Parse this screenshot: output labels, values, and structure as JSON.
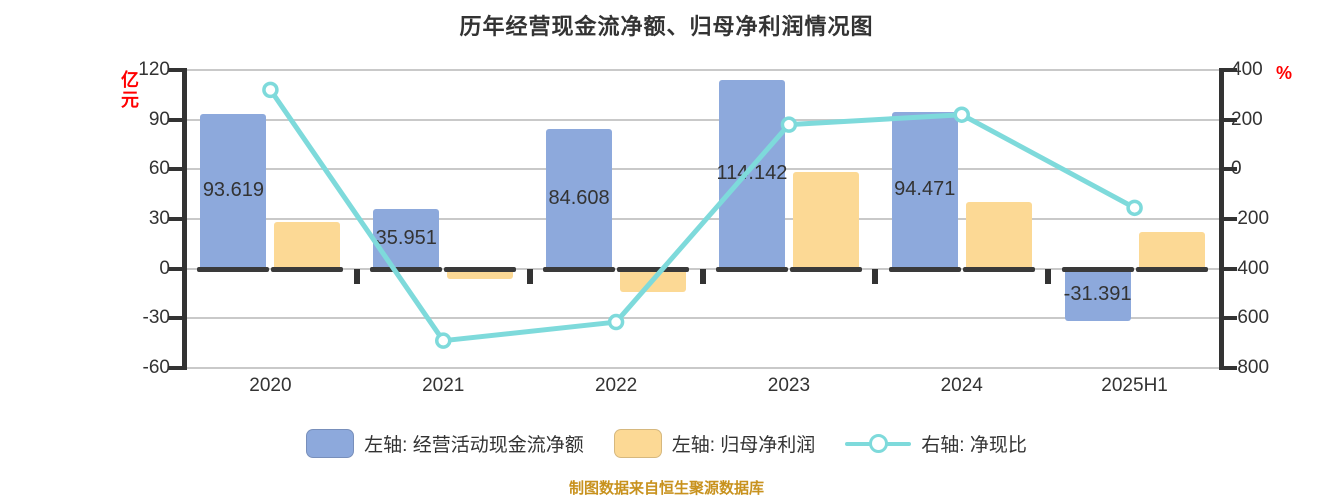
{
  "chart_data": {
    "type": "bar",
    "subtype": "dual-axis bar+line combo",
    "title": "历年经营现金流净额、归母净利润情况图",
    "categories": [
      "2020",
      "2021",
      "2022",
      "2023",
      "2024",
      "2025H1"
    ],
    "series": [
      {
        "key": "cashflow",
        "name": "左轴: 经营活动现金流净额",
        "type": "bar",
        "axis": "left",
        "color": "#8da9dc",
        "values": [
          93.619,
          35.951,
          84.608,
          114.142,
          94.471,
          -31.391
        ],
        "data_labels": [
          "93.619",
          "35.951",
          "84.608",
          "114.142",
          "94.471",
          "-31.391"
        ]
      },
      {
        "key": "netprofit",
        "name": "左轴: 归母净利润",
        "type": "bar",
        "axis": "left",
        "color": "#fcd995",
        "values": [
          28.0,
          -6.5,
          -14.0,
          58.5,
          40.5,
          22.0
        ]
      },
      {
        "key": "ratio",
        "name": "右轴: 净现比",
        "type": "line",
        "axis": "right",
        "color": "#7edadb",
        "values": [
          320,
          -690,
          -615,
          180,
          220,
          -155
        ]
      }
    ],
    "left_axis": {
      "unit": "亿元",
      "ticks": [
        120,
        90,
        60,
        30,
        0,
        -30,
        -60
      ],
      "ylim": [
        -60,
        120
      ]
    },
    "right_axis": {
      "unit": "%",
      "ticks": [
        400,
        200,
        0,
        -200,
        -400,
        -600,
        -800
      ],
      "ylim": [
        -800,
        400
      ]
    },
    "grid": true,
    "legend_position": "bottom"
  },
  "footer": "制图数据来自恒生聚源数据库",
  "colors": {
    "unit_red": "#ff0000",
    "text": "#333333",
    "grid": "#c9c9c9",
    "axis": "#333333",
    "footer": "#c8921e",
    "marker_fill": "#ffffff"
  }
}
